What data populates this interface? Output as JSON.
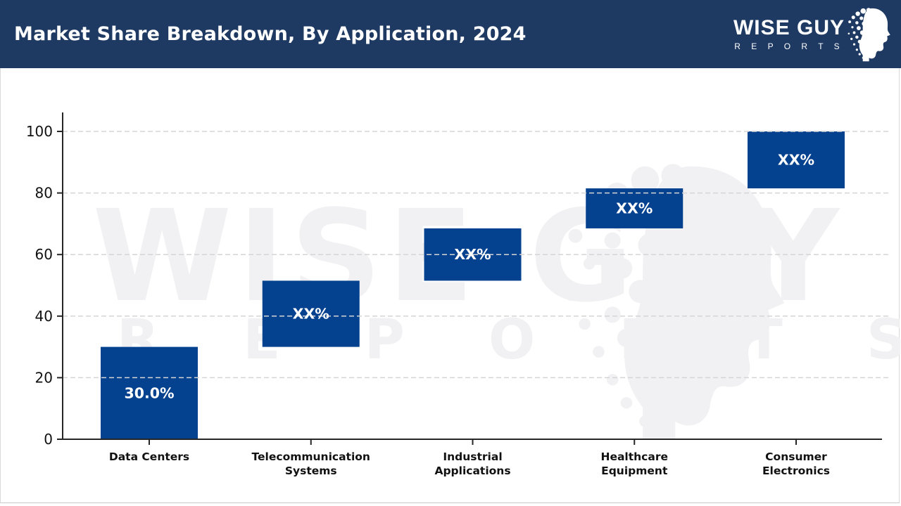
{
  "header": {
    "title": "Market Share Breakdown, By Application, 2024",
    "logo": {
      "wordmark": "WISE GUY",
      "sub": "R E P O R T S"
    }
  },
  "watermark": {
    "line1": "WISE GUY",
    "line2": "R E P O R T S"
  },
  "chart_data": {
    "type": "bar",
    "subtype": "waterfall",
    "title": "Market Share Breakdown, By Application, 2024",
    "xlabel": "",
    "ylabel": "",
    "categories": [
      [
        "Data Centers"
      ],
      [
        "Telecommunication",
        "Systems"
      ],
      [
        "Industrial",
        "Applications"
      ],
      [
        "Healthcare",
        "Equipment"
      ],
      [
        "Consumer",
        "Electronics"
      ]
    ],
    "segments": [
      {
        "category": "Data Centers",
        "start": 0,
        "end": 30,
        "label": "30.0%"
      },
      {
        "category": "Telecommunication Systems",
        "start": 30,
        "end": 51.5,
        "label": "XX%"
      },
      {
        "category": "Industrial Applications",
        "start": 51.5,
        "end": 68.5,
        "label": "XX%"
      },
      {
        "category": "Healthcare Equipment",
        "start": 68.5,
        "end": 81.5,
        "label": "XX%"
      },
      {
        "category": "Consumer Electronics",
        "start": 81.5,
        "end": 100,
        "label": "XX%"
      }
    ],
    "y_ticks": [
      0,
      20,
      40,
      60,
      80,
      100
    ],
    "ylim": [
      0,
      106
    ],
    "grid": true,
    "legend": false,
    "colors": {
      "bar": "#04418F",
      "grid": "#d5d5d5",
      "axis": "#262626",
      "bar_label": "#ffffff",
      "tick_label": "#111111",
      "category_label": "#111111",
      "watermark": "#f1f1f3",
      "header_bg": "#1e3a63",
      "header_text": "#ffffff"
    }
  }
}
